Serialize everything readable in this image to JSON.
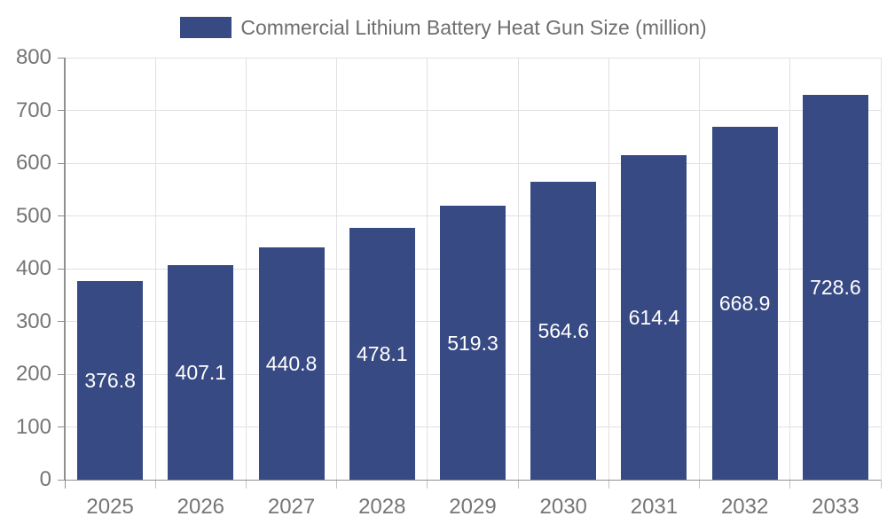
{
  "legend": {
    "series_label": "Commercial Lithium Battery Heat Gun Size (million)"
  },
  "chart_data": {
    "type": "bar",
    "title": "Commercial Lithium Battery Heat Gun Size (million)",
    "categories": [
      "2025",
      "2026",
      "2027",
      "2028",
      "2029",
      "2030",
      "2031",
      "2032",
      "2033"
    ],
    "values": [
      376.8,
      407.1,
      440.8,
      478.1,
      519.3,
      564.6,
      614.4,
      668.9,
      728.6
    ],
    "value_labels": [
      "376.8",
      "407.1",
      "440.8",
      "478.1",
      "519.3",
      "564.6",
      "614.4",
      "668.9",
      "728.6"
    ],
    "xlabel": "",
    "ylabel": "",
    "ylim": [
      0,
      800
    ],
    "ytick_interval": 100,
    "ytick_labels": [
      "0",
      "100",
      "200",
      "300",
      "400",
      "500",
      "600",
      "700",
      "800"
    ],
    "grid": true,
    "legend_position": "top-center",
    "value_label_position": "inside-middle",
    "colors": {
      "bar": "#384A83",
      "grid_line": "#E1E1E5",
      "axis_line": "#8F8F8F",
      "minor_tick": "#C2C2C6",
      "tick_text": "#757575",
      "value_text": "#FFFFFF",
      "legend_text": "#6E6E6E"
    }
  }
}
